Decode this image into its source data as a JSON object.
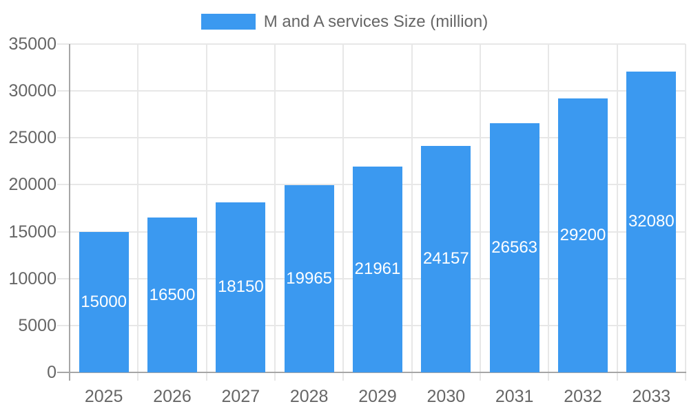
{
  "legend": {
    "label": "M and A services Size (million)"
  },
  "colors": {
    "bar": "#3B99F0",
    "axis_text": "#666666",
    "grid_line": "#E7E7E7",
    "axis_line": "#A6A6A6",
    "value_label": "#FFFFFF",
    "background": "#FFFFFF"
  },
  "chart_data": {
    "type": "bar",
    "title": "M and A services Size (million)",
    "categories": [
      "2025",
      "2026",
      "2027",
      "2028",
      "2029",
      "2030",
      "2031",
      "2032",
      "2033"
    ],
    "series": [
      {
        "name": "M and A services Size (million)",
        "values": [
          15000,
          16500,
          18150,
          19965,
          21961,
          24157,
          26563,
          29200,
          32080
        ]
      }
    ],
    "xlabel": "",
    "ylabel": "",
    "ylim": [
      0,
      35000
    ],
    "ytick_step": 5000,
    "yticks": [
      0,
      5000,
      10000,
      15000,
      20000,
      25000,
      30000,
      35000
    ],
    "grid": true,
    "legend_position": "top-center",
    "value_labels_position": "inside-center",
    "bar_color": "#3B99F0"
  }
}
